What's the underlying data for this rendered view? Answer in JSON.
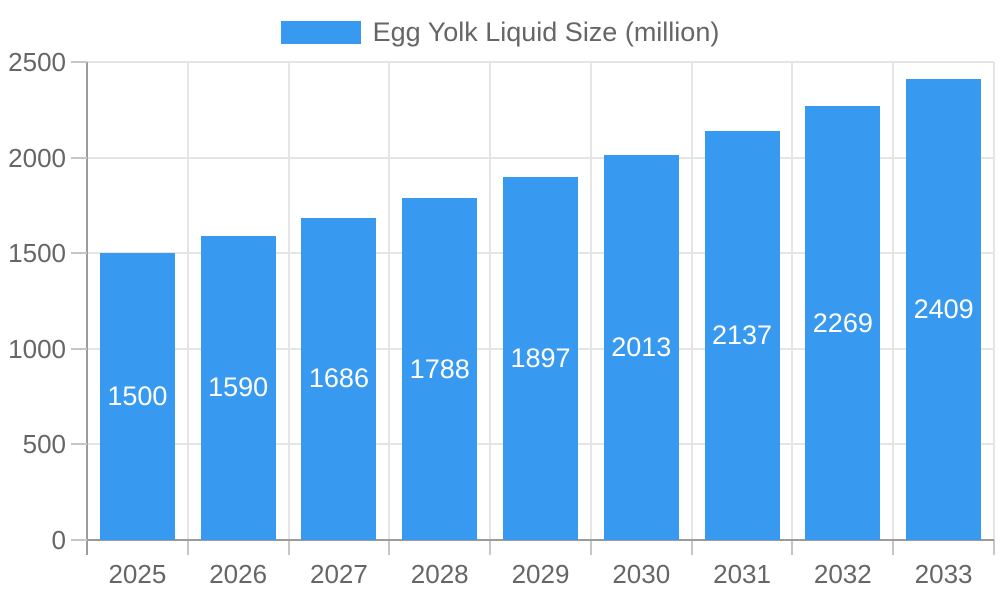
{
  "chart_data": {
    "type": "bar",
    "title": "Egg Yolk Liquid Size (million)",
    "series_name": "Egg Yolk Liquid Size (million)",
    "categories": [
      "2025",
      "2026",
      "2027",
      "2028",
      "2029",
      "2030",
      "2031",
      "2032",
      "2033"
    ],
    "values": [
      1500,
      1590,
      1686,
      1788,
      1897,
      2013,
      2137,
      2269,
      2409
    ],
    "xlabel": "",
    "ylabel": "",
    "ylim": [
      0,
      2500
    ],
    "ytick_step": 500,
    "yticks": [
      0,
      500,
      1000,
      1500,
      2000,
      2500
    ],
    "grid": true,
    "legend_position": "top-center",
    "value_labels": "inside-center",
    "colors": {
      "bar": "#3899F0",
      "value_label": "#FFFFFF",
      "axis_line": "#9B9B9B",
      "grid_line": "#E5E5E5",
      "tick_mark": "#C6C6C6",
      "tick_label": "#666666",
      "legend_text": "#666666",
      "background": "#FFFFFF"
    }
  }
}
